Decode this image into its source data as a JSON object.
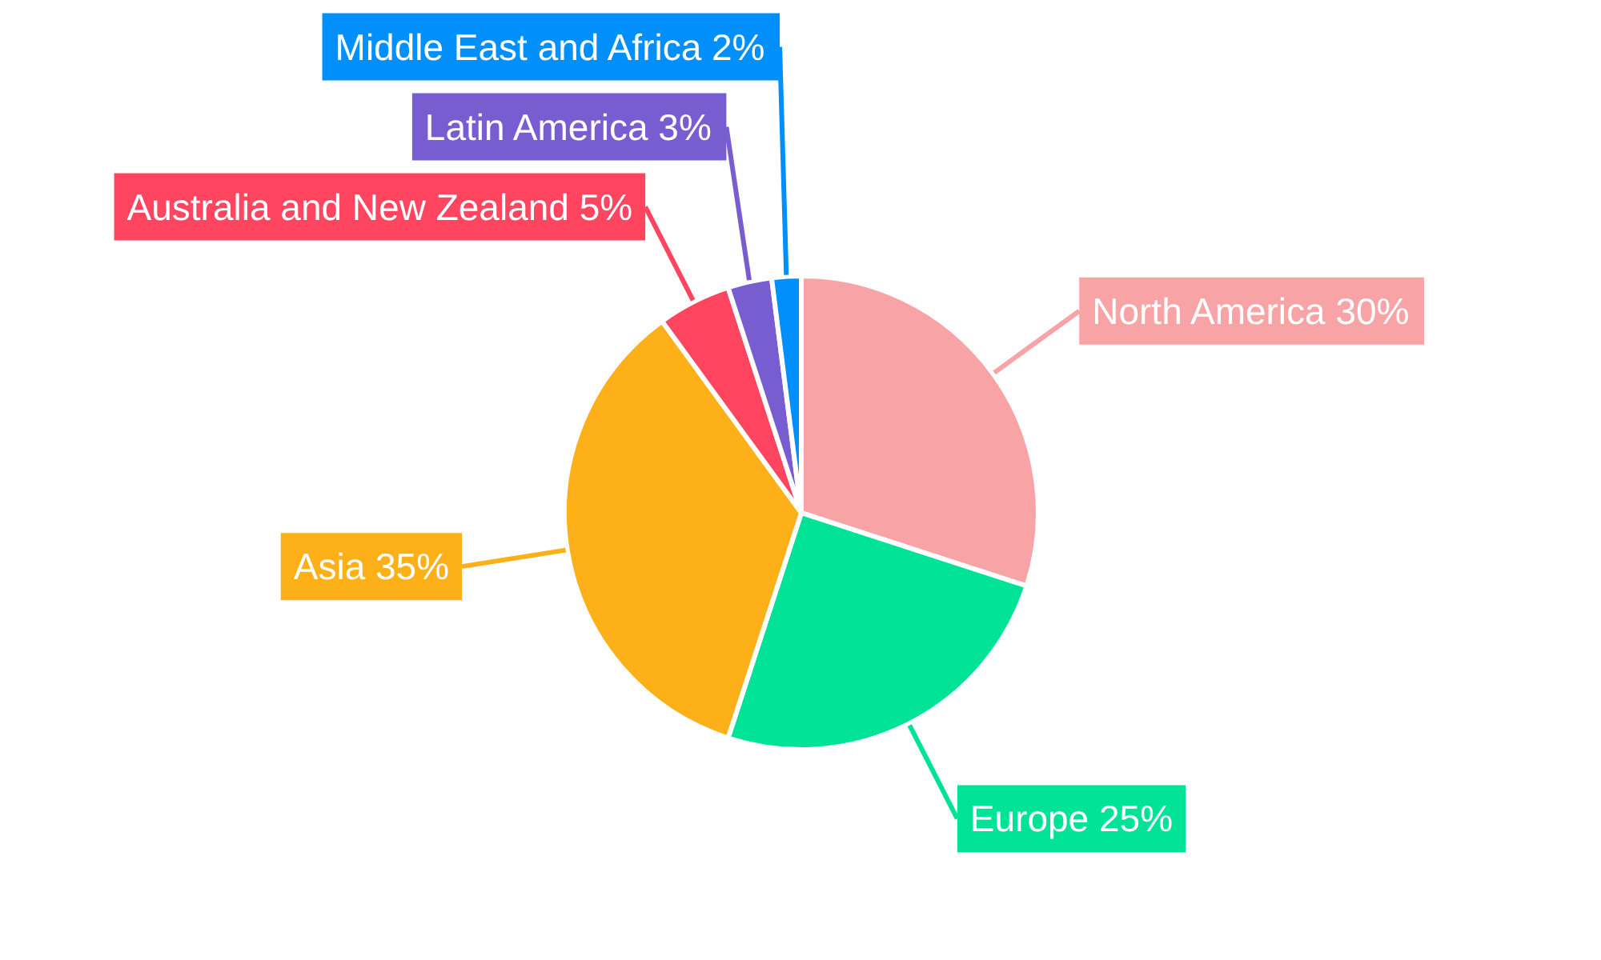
{
  "chart_data": {
    "type": "pie",
    "categories": [
      "North America",
      "Europe",
      "Asia",
      "Australia and New Zealand",
      "Latin America",
      "Middle East and Africa"
    ],
    "values": [
      30,
      25,
      35,
      5,
      3,
      2
    ],
    "colors": [
      "#f8a4a6",
      "#00e396",
      "#feb019",
      "#ff4560",
      "#775dd0",
      "#008ffb"
    ],
    "value_labels": [
      "30%",
      "25%",
      "35%",
      "5%",
      "3%",
      "2%"
    ]
  }
}
